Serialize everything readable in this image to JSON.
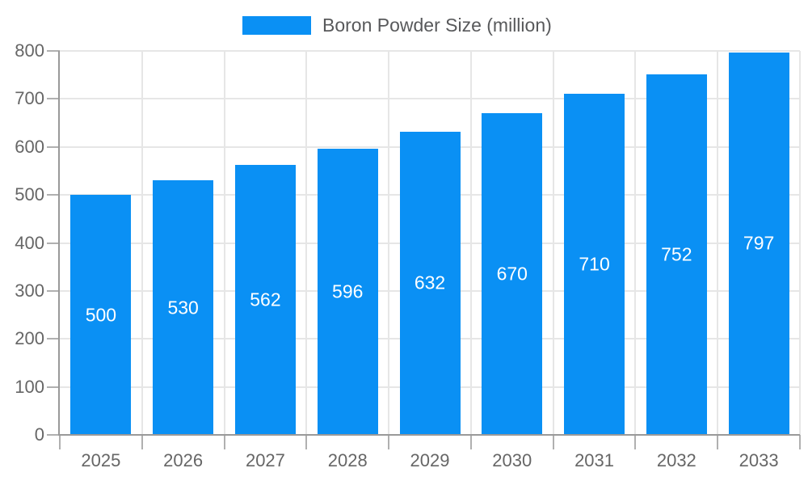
{
  "legend": {
    "label": "Boron Powder Size (million)",
    "swatch_color": "#0a90f4"
  },
  "chart_data": {
    "type": "bar",
    "title": "Boron Powder Size (million)",
    "categories": [
      "2025",
      "2026",
      "2027",
      "2028",
      "2029",
      "2030",
      "2031",
      "2032",
      "2033"
    ],
    "values": [
      500,
      530,
      562,
      596,
      632,
      670,
      710,
      752,
      797
    ],
    "xlabel": "",
    "ylabel": "",
    "ylim": [
      0,
      800
    ],
    "yticks": [
      0,
      100,
      200,
      300,
      400,
      500,
      600,
      700,
      800
    ],
    "grid": true,
    "legend_position": "top",
    "bar_color": "#0a90f4",
    "bar_label_color": "#ffffff",
    "axis_text_color": "#666666",
    "grid_color": "#e6e6e6",
    "axis_line_color": "#999999"
  }
}
